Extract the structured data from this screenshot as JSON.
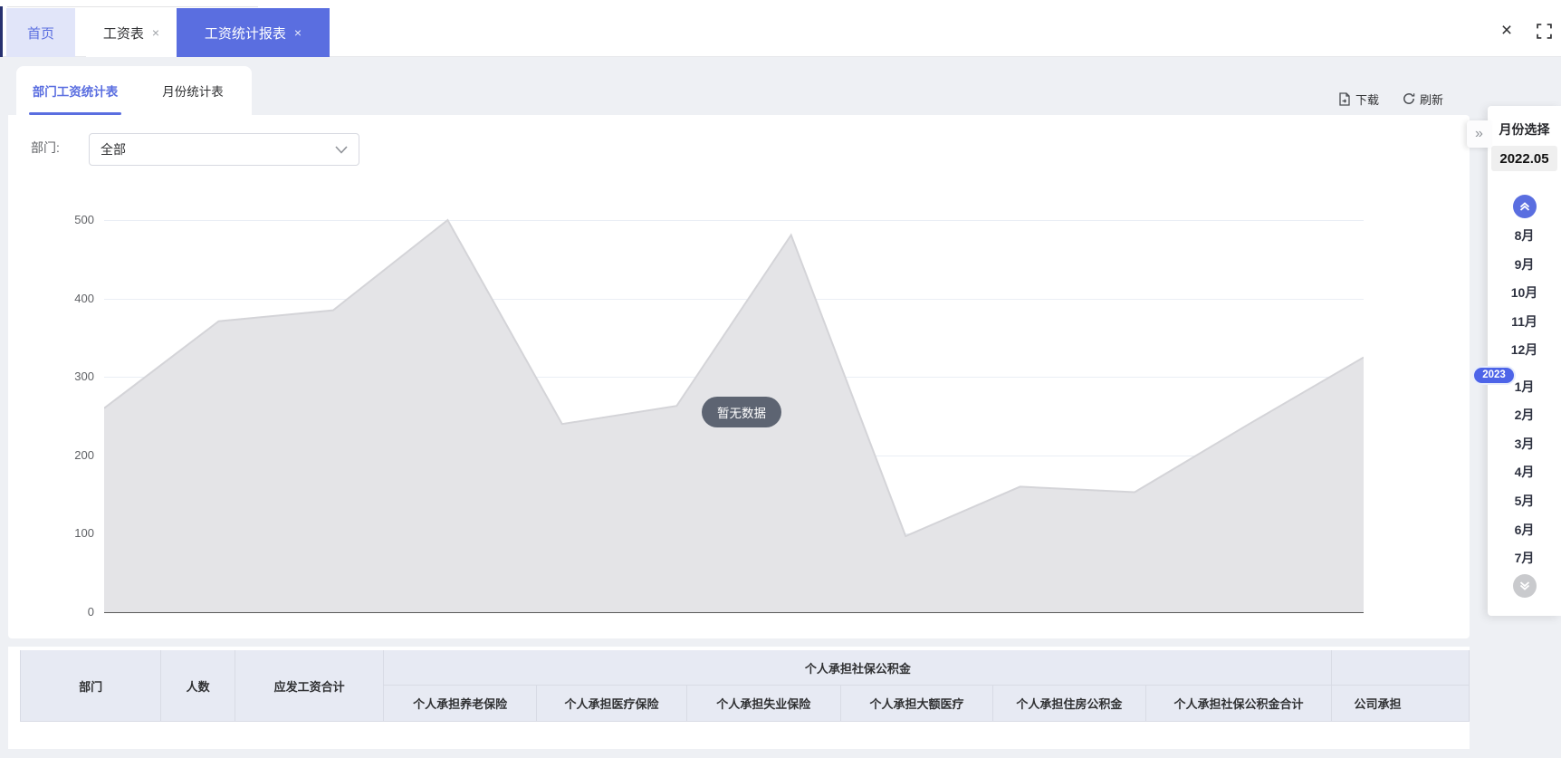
{
  "top_tabs": [
    {
      "label": "首页"
    },
    {
      "label": "工资表",
      "close": "×"
    },
    {
      "label": "工资统计报表",
      "close": "×"
    }
  ],
  "window_controls": {
    "close": "×"
  },
  "report_tabs": [
    {
      "label": "部门工资统计表"
    },
    {
      "label": "月份统计表"
    }
  ],
  "toolbar": {
    "download": "下载",
    "refresh": "刷新"
  },
  "filter": {
    "label": "部门:",
    "value": "全部"
  },
  "chart_tooltip": "暂无数据",
  "chart_data": {
    "type": "area",
    "values": [
      260,
      371,
      385,
      500,
      240,
      263,
      481,
      97,
      160,
      153,
      240,
      325
    ],
    "yticks": [
      0,
      100,
      200,
      300,
      400,
      500
    ],
    "ylim": [
      0,
      500
    ],
    "title": "",
    "xlabel": "",
    "ylabel": "",
    "x_labels_visible": false,
    "grid": true,
    "area_color": "#e4e4e7",
    "line_color": "#d4d4d8",
    "overlay_text": "暂无数据"
  },
  "month_panel": {
    "collapse": "»",
    "title": "月份选择",
    "selected": "2022.05",
    "year_badge": "2023",
    "months_2022": [
      "8月",
      "9月",
      "10月",
      "11月",
      "12月"
    ],
    "months_2023": [
      "1月",
      "2月",
      "3月",
      "4月",
      "5月",
      "6月",
      "7月"
    ]
  },
  "table": {
    "col_department": "部门",
    "col_headcount": "人数",
    "col_gross_total": "应发工资合计",
    "group_personal": "个人承担社保公积金",
    "sub_columns": [
      "个人承担养老保险",
      "个人承担医疗保险",
      "个人承担失业保险",
      "个人承担大额医疗",
      "个人承担住房公积金",
      "个人承担社保公积金合计"
    ],
    "col_company_cut": "公司承担"
  }
}
